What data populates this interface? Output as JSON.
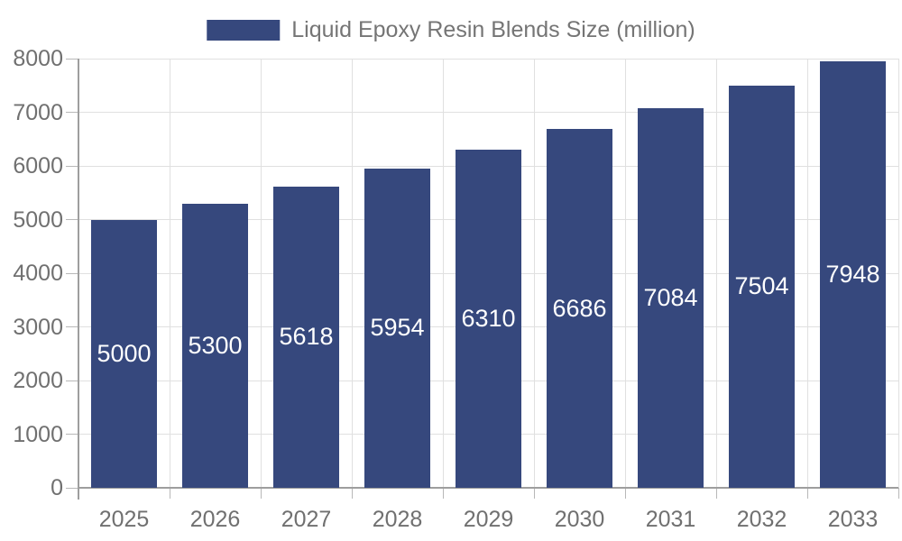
{
  "chart_data": {
    "type": "bar",
    "title": "",
    "legend_position": "top-center",
    "categories": [
      "2025",
      "2026",
      "2027",
      "2028",
      "2029",
      "2030",
      "2031",
      "2032",
      "2033"
    ],
    "series": [
      {
        "name": "Liquid Epoxy Resin Blends Size (million)",
        "values": [
          5000,
          5300,
          5618,
          5954,
          6310,
          6686,
          7084,
          7504,
          7948
        ]
      }
    ],
    "bar_value_labels": [
      "5000",
      "5300",
      "5618",
      "5954",
      "6310",
      "6686",
      "7084",
      "7504",
      "7948"
    ],
    "xlabel": "",
    "ylabel": "",
    "ylim": [
      0,
      8000
    ],
    "yticks": [
      0,
      1000,
      2000,
      3000,
      4000,
      5000,
      6000,
      7000,
      8000
    ],
    "grid": true,
    "colors": {
      "bar": "#36487d",
      "bar_label_text": "#ffffff",
      "axis_text": "#707070",
      "legend_text": "#757575",
      "gridline": "#e0e0e0",
      "tick": "#b8b8b8",
      "axis_line": "#9e9e9e",
      "background": "#ffffff"
    }
  }
}
